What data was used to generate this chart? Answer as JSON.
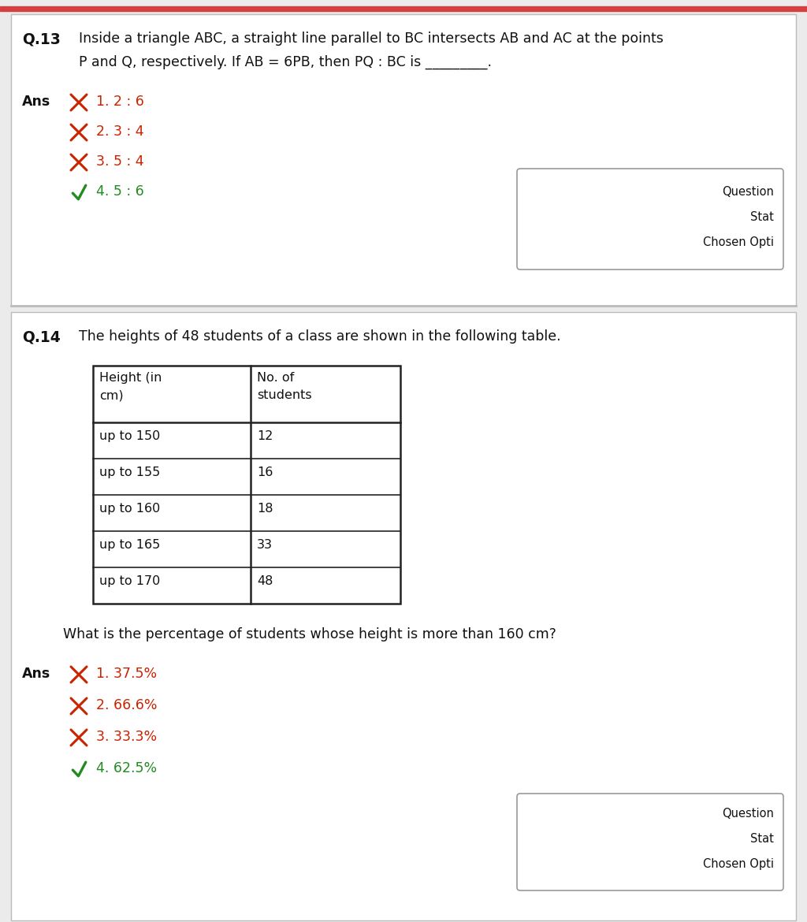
{
  "bg_color": "#ebebeb",
  "panel_color": "#ffffff",
  "top_bar_color": "#d44040",
  "q13": {
    "number": "Q.13",
    "question_line1": "Inside a triangle ABC, a straight line parallel to BC intersects AB and AC at the points",
    "question_line2": "P and Q, respectively. If AB = 6PB, then PQ : BC is _________.",
    "ans_label": "Ans",
    "options": [
      {
        "num": "1.",
        "text": "2 : 6",
        "correct": false
      },
      {
        "num": "2.",
        "text": "3 : 4",
        "correct": false
      },
      {
        "num": "3.",
        "text": "5 : 4",
        "correct": false
      },
      {
        "num": "4.",
        "text": "5 : 6",
        "correct": true
      }
    ],
    "sidebar_texts": [
      "Question",
      "Stat",
      "Chosen Opti"
    ]
  },
  "q14": {
    "number": "Q.14",
    "question": "The heights of 48 students of a class are shown in the following table.",
    "table_headers": [
      "Height (in\ncm)",
      "No. of\nstudents"
    ],
    "table_rows": [
      [
        "up to 150",
        "12"
      ],
      [
        "up to 155",
        "16"
      ],
      [
        "up to 160",
        "18"
      ],
      [
        "up to 165",
        "33"
      ],
      [
        "up to 170",
        "48"
      ]
    ],
    "sub_question": "What is the percentage of students whose height is more than 160 cm?",
    "ans_label": "Ans",
    "options": [
      {
        "num": "1.",
        "text": "37.5%",
        "correct": false
      },
      {
        "num": "2.",
        "text": "66.6%",
        "correct": false
      },
      {
        "num": "3.",
        "text": "33.3%",
        "correct": false
      },
      {
        "num": "4.",
        "text": "62.5%",
        "correct": true
      }
    ],
    "sidebar_texts": [
      "Question",
      "Stat",
      "Chosen Opti"
    ]
  },
  "red_color": "#cc2200",
  "green_color": "#228B22",
  "text_color": "#111111"
}
